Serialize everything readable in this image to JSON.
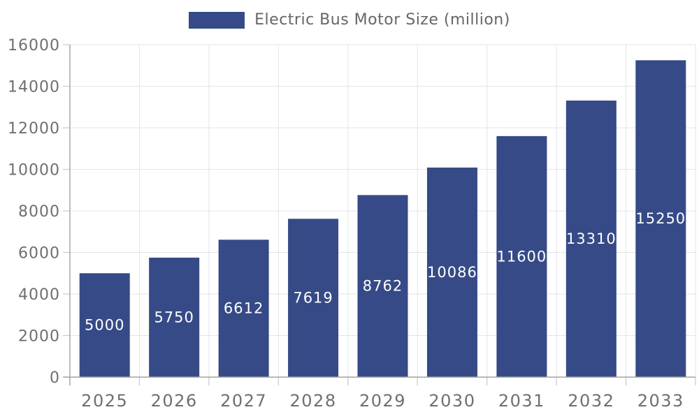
{
  "legend": {
    "label": "Electric Bus Motor Size (million)"
  },
  "chart_data": {
    "type": "bar",
    "title": "Electric Bus Motor Size (million)",
    "series_name": "Electric Bus Motor Size (million)",
    "categories": [
      "2025",
      "2026",
      "2027",
      "2028",
      "2029",
      "2030",
      "2031",
      "2032",
      "2033"
    ],
    "values": [
      5000,
      5750,
      6612,
      7619,
      8762,
      10086,
      11600,
      13310,
      15250
    ],
    "value_labels": [
      "5000",
      "5750",
      "6612",
      "7619",
      "8762",
      "10086",
      "11600",
      "13310",
      "15250"
    ],
    "xlabel": "",
    "ylabel": "",
    "ylim": [
      0,
      16000
    ],
    "y_tick_step": 2000,
    "y_tick_labels": [
      "0",
      "2000",
      "4000",
      "6000",
      "8000",
      "10000",
      "12000",
      "14000",
      "16000"
    ],
    "grid": true,
    "legend_position": "top-center",
    "colors": {
      "bar": "#364a87",
      "value_label": "#ffffff",
      "grid": "#e4e4e4",
      "axis_line": "#a3a3a3",
      "tick": "#c9c9c9",
      "axis_text": "#6f6f6f",
      "legend_text": "#666666"
    }
  }
}
